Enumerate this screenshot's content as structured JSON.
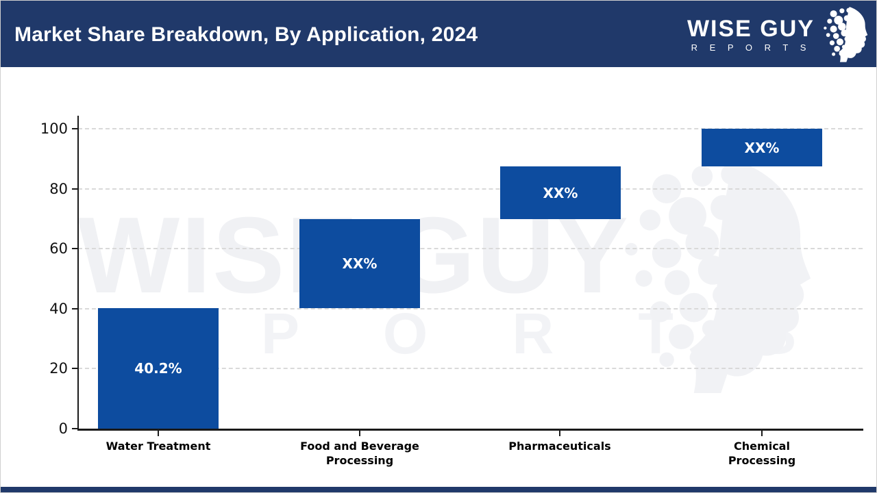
{
  "header": {
    "title": "Market Share Breakdown, By Application, 2024",
    "logo": {
      "line1": "WISE GUY",
      "line2": "R E P O R T S"
    }
  },
  "watermark": {
    "big_text": "WISE GUY",
    "small_text": "P O R T S"
  },
  "chart_data": {
    "type": "bar",
    "variant": "waterfall",
    "title": "Market Share Breakdown, By Application, 2024",
    "categories": [
      "Water Treatment",
      "Food and Beverage\nProcessing",
      "Pharmaceuticals",
      "Chemical\nProcessing"
    ],
    "segments": [
      {
        "category": "Water Treatment",
        "start": 0,
        "end": 40.2,
        "label": "40.2%"
      },
      {
        "category": "Food and Beverage Processing",
        "start": 40.2,
        "end": 69.8,
        "label": "XX%"
      },
      {
        "category": "Pharmaceuticals",
        "start": 69.8,
        "end": 87.4,
        "label": "XX%"
      },
      {
        "category": "Chemical Processing",
        "start": 87.4,
        "end": 100,
        "label": "XX%"
      }
    ],
    "ylim": [
      0,
      100
    ],
    "yticks": [
      0,
      20,
      40,
      60,
      80,
      100
    ],
    "grid": {
      "horizontal": true,
      "style": "dashed"
    },
    "legend": null,
    "xlabel": "",
    "ylabel": "",
    "colors": {
      "bar": "#0d4c9f",
      "bar_label": "#ffffff",
      "axis": "#1a1a1a",
      "grid": "#d9d9d9",
      "tick_label": "#111111",
      "header_bg": "#20396a",
      "footer_bg": "#20396a",
      "watermark": "#f0f1f4"
    }
  }
}
